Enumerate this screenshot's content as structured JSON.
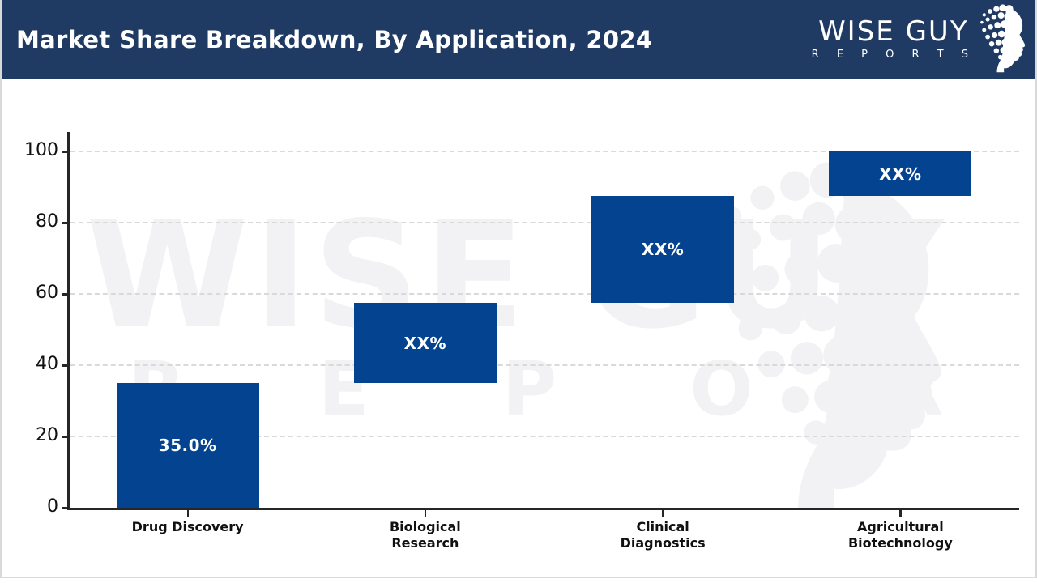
{
  "header": {
    "title": "Market Share Breakdown, By Application, 2024",
    "bg_color": "#1f3a63",
    "logo": {
      "line1": "WISE GUY",
      "line2": "R E P O R T S"
    }
  },
  "watermark": {
    "line1": "WISE GUY",
    "line2": "R E P O R T S"
  },
  "chart_data": {
    "type": "bar",
    "subtype": "stepped-waterfall",
    "title": "Market Share Breakdown, By Application, 2024",
    "categories": [
      "Drug Discovery",
      "Biological Research",
      "Clinical Diagnostics",
      "Agricultural Biotechnology"
    ],
    "category_labels": [
      [
        "Drug Discovery"
      ],
      [
        "Biological",
        "Research"
      ],
      [
        "Clinical",
        "Diagnostics"
      ],
      [
        "Agricultural",
        "Biotechnology"
      ]
    ],
    "series": [
      {
        "name": "Market share (%)",
        "segments": [
          {
            "category": "Drug Discovery",
            "start": 0,
            "end": 35,
            "label": "35.0%"
          },
          {
            "category": "Biological Research",
            "start": 35,
            "end": 57.5,
            "label": "XX%"
          },
          {
            "category": "Clinical Diagnostics",
            "start": 57.5,
            "end": 87.5,
            "label": "XX%"
          },
          {
            "category": "Agricultural Biotechnology",
            "start": 87.5,
            "end": 100,
            "label": "XX%"
          }
        ]
      }
    ],
    "xlabel": "",
    "ylabel": "",
    "yticks": [
      0,
      20,
      40,
      60,
      80,
      100
    ],
    "ylim": [
      0,
      105
    ],
    "grid": {
      "axis": "y",
      "style": "dashed",
      "color": "#d9d9d9"
    },
    "legend": false,
    "bar_color": "#04438f",
    "bar_label_color": "#ffffff",
    "axis_color": "#262626",
    "tick_label_color": "#111111"
  }
}
